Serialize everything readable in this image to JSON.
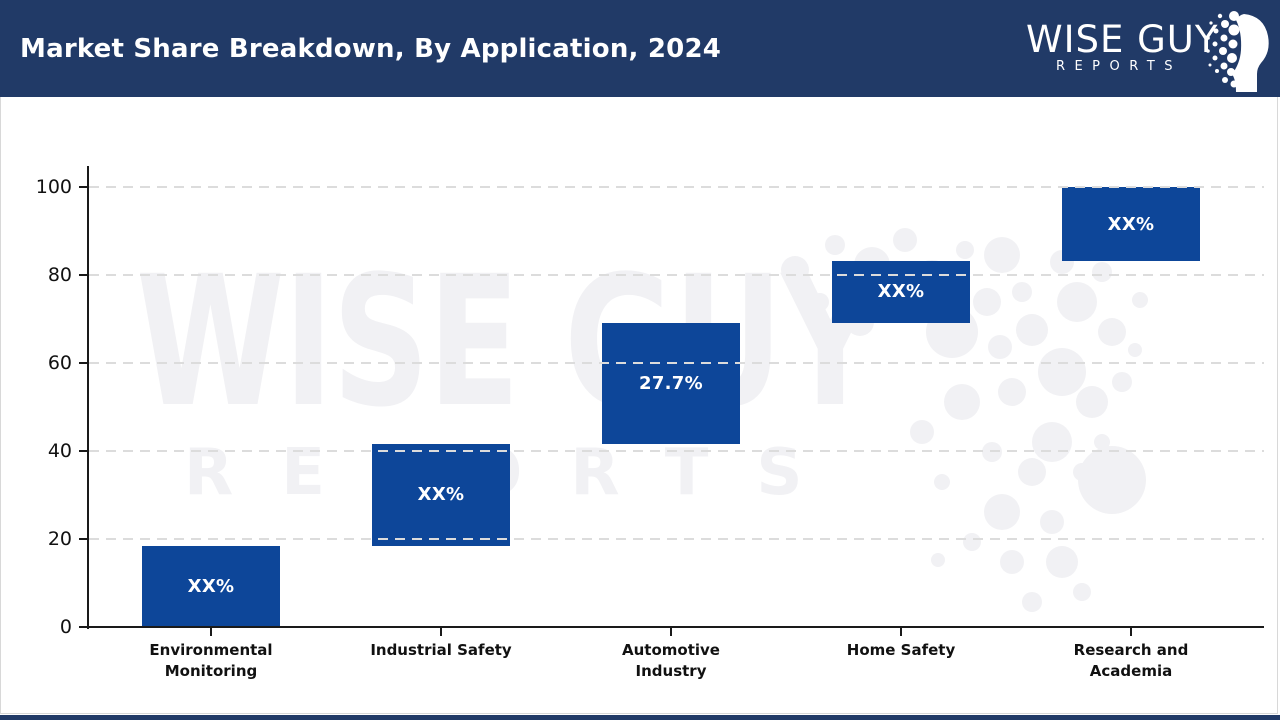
{
  "header": {
    "title": "Market Share Breakdown, By Application, 2024",
    "logo": {
      "line1": "WISE GUY",
      "line2": "REPORTS"
    }
  },
  "watermark": {
    "line1": "WISE GUY",
    "line2": "REPORTS"
  },
  "chart_data": {
    "type": "bar",
    "subtype": "floating-waterfall",
    "title": "Market Share Breakdown, By Application, 2024",
    "categories": [
      "Environmental Monitoring",
      "Industrial Safety",
      "Automotive Industry",
      "Home Safety",
      "Research and Academia"
    ],
    "segments": [
      {
        "category": "Environmental Monitoring",
        "label": "XX%",
        "start": 0,
        "end": 18.5
      },
      {
        "category": "Industrial Safety",
        "label": "XX%",
        "start": 18.5,
        "end": 41.5
      },
      {
        "category": "Automotive Industry",
        "label": "27.7%",
        "start": 41.5,
        "end": 69.2
      },
      {
        "category": "Home Safety",
        "label": "XX%",
        "start": 69.2,
        "end": 83.1
      },
      {
        "category": "Research and Academia",
        "label": "XX%",
        "start": 83.1,
        "end": 100
      }
    ],
    "ylim": [
      0,
      100
    ],
    "yticks": [
      0,
      20,
      40,
      60,
      80,
      100
    ],
    "grid": "horizontal-dashed",
    "legend": "none",
    "bar_color": "#0d4699",
    "colors": {
      "header_navy": "#213a67",
      "grid_gray": "#dcdcdc",
      "watermark_gray": "#f1f1f4"
    }
  }
}
